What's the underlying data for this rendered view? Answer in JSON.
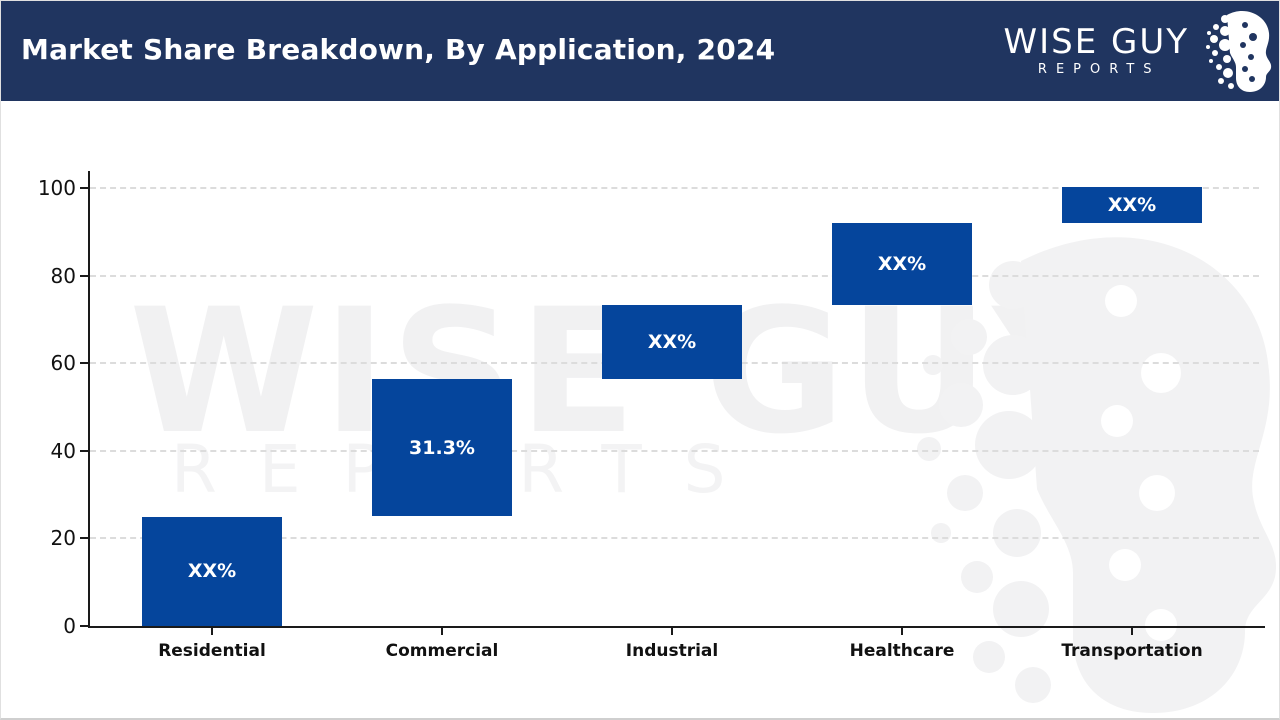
{
  "header": {
    "title": "Market Share Breakdown, By Application, 2024",
    "bg_color": "#203560",
    "logo": {
      "line1": "WISE GUY",
      "line2": "REPORTS"
    }
  },
  "watermark": {
    "line1": "WISE GUY",
    "line2": "REPORTS"
  },
  "chart_data": {
    "type": "bar",
    "subtype": "floating-waterfall",
    "title": "Market Share Breakdown, By Application, 2024",
    "xlabel": "",
    "ylabel": "",
    "ylim": [
      0,
      100
    ],
    "yticks": [
      0,
      20,
      40,
      60,
      80,
      100
    ],
    "grid": "horizontal-dashed",
    "legend": "none",
    "bar_color": "#05459c",
    "label_color": "#ffffff",
    "categories": [
      "Residential",
      "Commercial",
      "Industrial",
      "Healthcare",
      "Transportation"
    ],
    "segments": [
      {
        "category": "Residential",
        "start": 0,
        "end": 25,
        "label": "XX%"
      },
      {
        "category": "Commercial",
        "start": 25,
        "end": 56.3,
        "label": "31.3%"
      },
      {
        "category": "Industrial",
        "start": 56.3,
        "end": 73.3,
        "label": "XX%"
      },
      {
        "category": "Healthcare",
        "start": 73.3,
        "end": 92,
        "label": "XX%"
      },
      {
        "category": "Transportation",
        "start": 92,
        "end": 100.3,
        "label": "XX%"
      }
    ]
  }
}
